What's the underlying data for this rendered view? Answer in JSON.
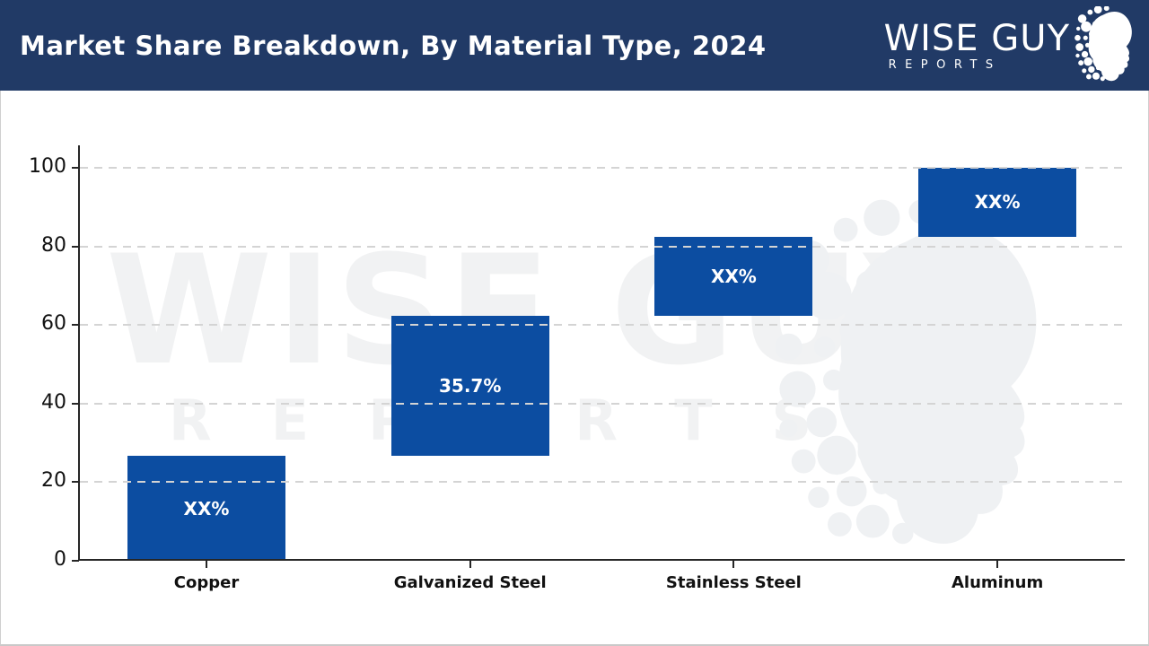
{
  "header": {
    "title": "Market Share Breakdown, By Material Type, 2024",
    "logo": {
      "line1": "WISE GUY",
      "line2": "REPORTS"
    }
  },
  "watermark": {
    "line1": "WISE GUY",
    "line2": "REPORTS"
  },
  "colors": {
    "header_bg": "#213a66",
    "bar": "#0c4da1",
    "grid": "#d4d4d4",
    "axis": "#262626",
    "bar_label": "#ffffff",
    "watermark": "#f1f2f3",
    "page_border": "#cfcfcf"
  },
  "chart_data": {
    "type": "bar",
    "subtype": "waterfall",
    "title": "Market Share Breakdown, By Material Type, 2024",
    "xlabel": "",
    "ylabel": "",
    "ylim": [
      0,
      105
    ],
    "yticks": [
      0,
      20,
      40,
      60,
      80,
      100
    ],
    "grid": true,
    "grid_style": "dashed",
    "categories": [
      "Copper",
      "Galvanized Steel",
      "Stainless Steel",
      "Aluminum"
    ],
    "bars": [
      {
        "category": "Copper",
        "start": 0,
        "end": 26.7,
        "value": 26.7,
        "label": "XX%"
      },
      {
        "category": "Galvanized Steel",
        "start": 26.7,
        "end": 62.4,
        "value": 35.7,
        "label": "35.7%"
      },
      {
        "category": "Stainless Steel",
        "start": 62.4,
        "end": 82.5,
        "value": 20.1,
        "label": "XX%"
      },
      {
        "category": "Aluminum",
        "start": 82.5,
        "end": 100.0,
        "value": 17.5,
        "label": "XX%"
      }
    ]
  }
}
